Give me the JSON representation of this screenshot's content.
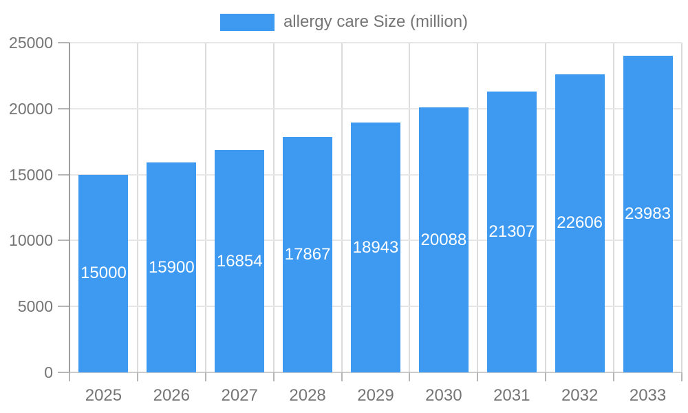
{
  "chart_data": {
    "type": "bar",
    "title": "",
    "categories": [
      "2025",
      "2026",
      "2027",
      "2028",
      "2029",
      "2030",
      "2031",
      "2032",
      "2033"
    ],
    "series": [
      {
        "name": "allergy care Size (million)",
        "values": [
          15000,
          15900,
          16854,
          17867,
          18943,
          20088,
          21307,
          22606,
          23983
        ],
        "color": "#3e9af0"
      }
    ],
    "bar_value_labels": [
      "15000",
      "15900",
      "16854",
      "17867",
      "18943",
      "20088",
      "21307",
      "22606",
      "23983"
    ],
    "xlabel": "",
    "ylabel": "",
    "ylim": [
      0,
      25000
    ],
    "yticks": [
      0,
      5000,
      10000,
      15000,
      20000,
      25000
    ],
    "grid": true,
    "legend_position": "top",
    "value_label_color": "#ffffff",
    "axis_label_color": "#757575"
  },
  "legend": {
    "label": "allergy care Size (million)",
    "swatch_color": "#3e9af0"
  }
}
